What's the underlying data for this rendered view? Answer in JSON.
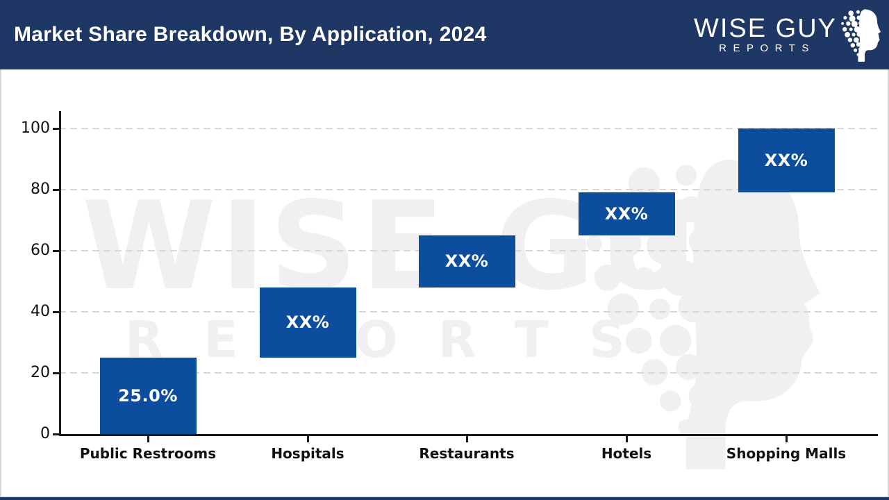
{
  "header": {
    "title": "Market Share Breakdown, By Application, 2024",
    "bg_color": "#1f3764",
    "logo": {
      "line1": "WISE GUY",
      "line2": "REPORTS"
    }
  },
  "watermark": {
    "line1": "WISE GUY",
    "line2": "REPORTS"
  },
  "chart_data": {
    "type": "bar",
    "subtype": "floating-waterfall",
    "title": "Market Share Breakdown, By Application, 2024",
    "xlabel": "",
    "ylabel": "",
    "categories": [
      "Public Restrooms",
      "Hospitals",
      "Restaurants",
      "Hotels",
      "Shopping Malls"
    ],
    "series": [
      {
        "name": "Market Share (%)",
        "segments": [
          {
            "category": "Public Restrooms",
            "start": 0,
            "end": 25,
            "label": "25.0%"
          },
          {
            "category": "Hospitals",
            "start": 25,
            "end": 48,
            "label": "XX%"
          },
          {
            "category": "Restaurants",
            "start": 48,
            "end": 65,
            "label": "XX%"
          },
          {
            "category": "Hotels",
            "start": 65,
            "end": 79,
            "label": "XX%"
          },
          {
            "category": "Shopping Malls",
            "start": 79,
            "end": 100,
            "label": "XX%"
          }
        ]
      }
    ],
    "ylim": [
      0,
      106
    ],
    "yticks": [
      0,
      20,
      40,
      60,
      80,
      100
    ],
    "grid": "horizontal-dashed",
    "legend": "none",
    "bar_color": "#0d4d9e",
    "bar_label_color": "#ffffff",
    "gridline_color": "#d9d9d9",
    "axis_color": "#1a1a1a"
  }
}
